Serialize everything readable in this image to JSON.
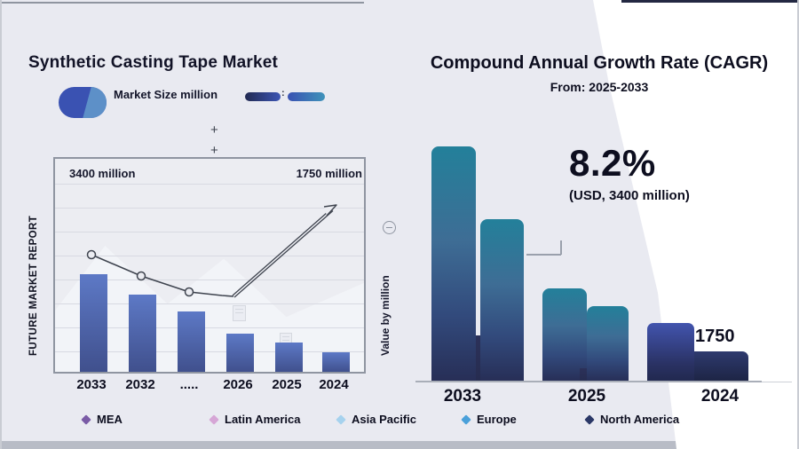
{
  "page": {
    "background": "#e9eaf1",
    "accent_navy": "#232a52",
    "accent_teal": "#2a7f9b",
    "accent_blue": "#3c55b4"
  },
  "decor": {
    "plus_top": "+",
    "plus_bottom": "+",
    "pill_separator": ":"
  },
  "header": {
    "left_title": "Synthetic Casting Tape Market",
    "market_size_label": "Market Size million",
    "right_title": "Compound Annual Growth Rate (CAGR)",
    "right_subtitle": "From: 2025-2033"
  },
  "left_panel": {
    "side_label": "FUTURE MARKET REPORT",
    "top_left_value": "3400 million",
    "top_right_value": "1750 million"
  },
  "middle": {
    "value_axis_label": "Value by million"
  },
  "right_panel": {
    "cagr_value": "8.2%",
    "cagr_context": "(USD, 3400 million)",
    "bar_value_label": "1750"
  },
  "legend": [
    {
      "label": "MEA",
      "color": "#7a5ba6"
    },
    {
      "label": "Latin America",
      "color": "#d6a6d6"
    },
    {
      "label": "Asia Pacific",
      "color": "#a6d2ee"
    },
    {
      "label": "Europe",
      "color": "#4aa0da"
    },
    {
      "label": "North America",
      "color": "#2b3867"
    }
  ],
  "chart_data": [
    {
      "id": "market-size-trend",
      "type": "bar",
      "title": "Synthetic Casting Tape Market",
      "series_label": "Market Size million",
      "categories": [
        "2033",
        "2032",
        ".....",
        "2026",
        "2025",
        "2024"
      ],
      "values": [
        3400,
        2970,
        2610,
        2140,
        1960,
        1750
      ],
      "unit": "USD million",
      "ylim": [
        0,
        3400
      ],
      "grid": "horizontal",
      "annotations": [
        "3400 million",
        "1750 million",
        "descending dotted-marker trend line with upward arrow overlay"
      ],
      "note": "stylized infographic, bar heights not to exact scale"
    },
    {
      "id": "cagr-bars",
      "type": "bar",
      "title": "Compound Annual Growth Rate (CAGR)",
      "subtitle": "From: 2025-2033",
      "cagr": "8.2%",
      "cagr_basis": "(USD, 3400 million)",
      "categories": [
        "2033",
        "2025",
        "2024"
      ],
      "series": [
        {
          "name": "series-a",
          "values": [
            3400,
            1350,
            850
          ]
        },
        {
          "name": "series-b",
          "values": [
            2350,
            1090,
            430
          ]
        }
      ],
      "data_labels": {
        "2024": "1750"
      },
      "ylabel": "Value by million",
      "unit": "USD million",
      "legend_position": "bottom",
      "note": "stylized infographic, bar heights not to exact scale"
    }
  ]
}
